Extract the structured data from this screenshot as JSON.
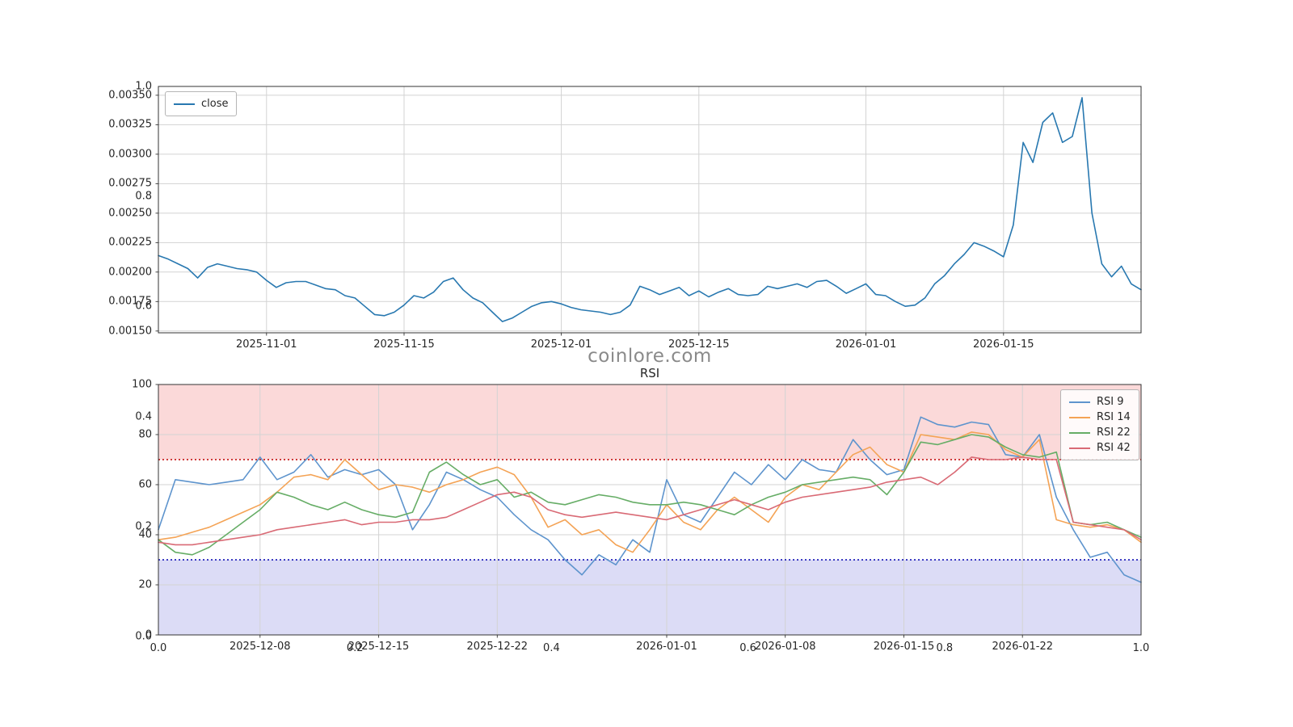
{
  "watermark": "coinlore.com",
  "chart_data": [
    {
      "type": "line",
      "title": "",
      "legend_position": "upper left",
      "grid": true,
      "x_start": "2025-10-21",
      "x_end": "2026-01-29",
      "x_ticks": [
        "2025-11-01",
        "2025-11-15",
        "2025-12-01",
        "2025-12-15",
        "2026-01-01",
        "2026-01-15"
      ],
      "ylim": [
        0.001485,
        0.003575
      ],
      "y_tick_vals": [
        0.0015,
        0.00175,
        0.002,
        0.00225,
        0.0025,
        0.00275,
        0.003,
        0.00325,
        0.0035
      ],
      "y_tick_labels": [
        "0.00150",
        "0.00175",
        "0.00200",
        "0.00225",
        "0.00250",
        "0.00275",
        "0.00300",
        "0.00325",
        "0.00350"
      ],
      "series": [
        {
          "name": "close",
          "color": "#2878b0",
          "values": [
            0.00214,
            0.00211,
            0.00207,
            0.00203,
            0.00195,
            0.00204,
            0.00207,
            0.00205,
            0.00203,
            0.00202,
            0.002,
            0.00193,
            0.00187,
            0.00191,
            0.00192,
            0.00192,
            0.00189,
            0.00186,
            0.00185,
            0.0018,
            0.00178,
            0.00171,
            0.00164,
            0.00163,
            0.00166,
            0.00172,
            0.0018,
            0.00178,
            0.00183,
            0.00192,
            0.00195,
            0.00185,
            0.00178,
            0.00174,
            0.00166,
            0.00158,
            0.00161,
            0.00166,
            0.00171,
            0.00174,
            0.00175,
            0.00173,
            0.0017,
            0.00168,
            0.00167,
            0.00166,
            0.00164,
            0.00166,
            0.00172,
            0.00188,
            0.00185,
            0.00181,
            0.00184,
            0.00187,
            0.0018,
            0.00184,
            0.00179,
            0.00183,
            0.00186,
            0.00181,
            0.0018,
            0.00181,
            0.00188,
            0.00186,
            0.00188,
            0.0019,
            0.00187,
            0.00192,
            0.00193,
            0.00188,
            0.00182,
            0.00186,
            0.0019,
            0.00181,
            0.0018,
            0.00175,
            0.00171,
            0.00172,
            0.00178,
            0.0019,
            0.00197,
            0.00207,
            0.00215,
            0.00225,
            0.00222,
            0.00218,
            0.00213,
            0.0024,
            0.0031,
            0.00293,
            0.00327,
            0.00335,
            0.0031,
            0.00315,
            0.00348,
            0.0025,
            0.00207,
            0.00196,
            0.00205,
            0.0019,
            0.00185
          ]
        }
      ]
    },
    {
      "type": "line",
      "title": "RSI",
      "legend_position": "upper right",
      "grid": true,
      "x_start": "2025-12-02",
      "x_end": "2026-01-29",
      "x_ticks": [
        "2025-12-08",
        "2025-12-15",
        "2025-12-22",
        "2026-01-01",
        "2026-01-08",
        "2026-01-15",
        "2026-01-22"
      ],
      "ylim": [
        0,
        100
      ],
      "y_tick_vals": [
        0,
        20,
        40,
        60,
        80,
        100
      ],
      "y_tick_labels": [
        "0",
        "20",
        "40",
        "60",
        "80",
        "100"
      ],
      "bands": [
        {
          "from": 70,
          "to": 100,
          "color": "#fbd9d9",
          "meaning": "overbought"
        },
        {
          "from": 0,
          "to": 30,
          "color": "#dcdcf6",
          "meaning": "oversold"
        }
      ],
      "hlines": [
        {
          "y": 70,
          "color": "#c00000",
          "style": "dotted"
        },
        {
          "y": 30,
          "color": "#0000b0",
          "style": "dotted"
        }
      ],
      "series": [
        {
          "name": "RSI 9",
          "color": "#5e94cd",
          "values": [
            42,
            62,
            61,
            60,
            61,
            62,
            71,
            62,
            65,
            72,
            63,
            66,
            64,
            66,
            60,
            42,
            52,
            65,
            62,
            58,
            55,
            48,
            42,
            38,
            30,
            24,
            32,
            28,
            38,
            33,
            62,
            48,
            45,
            55,
            65,
            60,
            68,
            62,
            70,
            66,
            65,
            78,
            70,
            64,
            66,
            87,
            84,
            83,
            85,
            84,
            72,
            71,
            80,
            55,
            42,
            31,
            33,
            24,
            21
          ]
        },
        {
          "name": "RSI 14",
          "color": "#f4a355",
          "values": [
            38,
            39,
            41,
            43,
            46,
            49,
            52,
            57,
            63,
            64,
            62,
            70,
            64,
            58,
            60,
            59,
            57,
            60,
            62,
            65,
            67,
            64,
            55,
            43,
            46,
            40,
            42,
            36,
            33,
            42,
            52,
            45,
            42,
            50,
            55,
            50,
            45,
            55,
            60,
            58,
            65,
            72,
            75,
            68,
            65,
            80,
            79,
            78,
            81,
            80,
            74,
            71,
            78,
            46,
            44,
            43,
            44,
            42,
            37
          ]
        },
        {
          "name": "RSI 22",
          "color": "#66ad66",
          "values": [
            38,
            33,
            32,
            35,
            40,
            45,
            50,
            57,
            55,
            52,
            50,
            53,
            50,
            48,
            47,
            49,
            65,
            69,
            64,
            60,
            62,
            55,
            57,
            53,
            52,
            54,
            56,
            55,
            53,
            52,
            52,
            53,
            52,
            50,
            48,
            52,
            55,
            57,
            60,
            61,
            62,
            63,
            62,
            56,
            65,
            77,
            76,
            78,
            80,
            79,
            75,
            72,
            71,
            73,
            45,
            44,
            45,
            42,
            39
          ]
        },
        {
          "name": "RSI 42",
          "color": "#d96a75",
          "values": [
            37,
            36,
            36,
            37,
            38,
            39,
            40,
            42,
            43,
            44,
            45,
            46,
            44,
            45,
            45,
            46,
            46,
            47,
            50,
            53,
            56,
            57,
            55,
            50,
            48,
            47,
            48,
            49,
            48,
            47,
            46,
            48,
            50,
            52,
            54,
            52,
            50,
            53,
            55,
            56,
            57,
            58,
            59,
            61,
            62,
            63,
            60,
            65,
            71,
            70,
            70,
            71,
            70,
            70,
            45,
            44,
            43,
            42,
            38
          ]
        }
      ]
    }
  ],
  "hidden_axis_ticks": {
    "x_labels": [
      "0.0",
      "0.2",
      "0.4",
      "0.6",
      "0.8",
      "1.0"
    ],
    "y_labels": [
      "1.0",
      "0.8",
      "0.6",
      "0.4",
      "0.2",
      "0.0"
    ]
  },
  "style": {
    "grid_color": "#d3d3d3",
    "spine_color": "#333333"
  }
}
